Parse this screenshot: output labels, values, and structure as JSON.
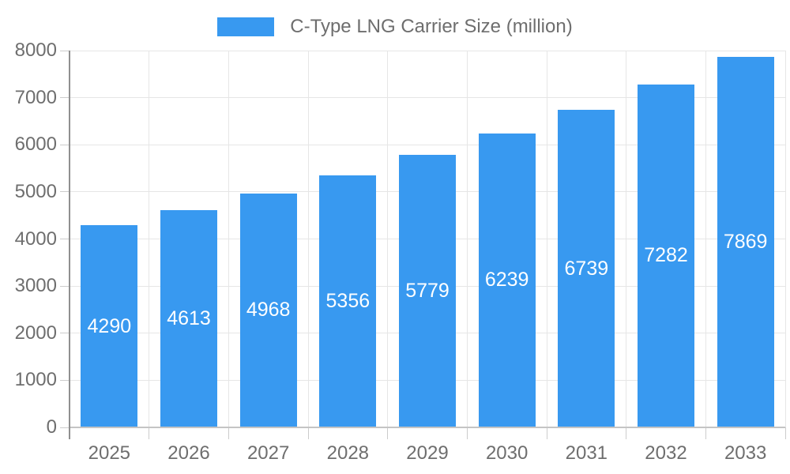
{
  "chart_data": {
    "type": "bar",
    "title": "C-Type LNG Carrier Size (million)",
    "legend_position": "top",
    "categories": [
      "2025",
      "2026",
      "2027",
      "2028",
      "2029",
      "2030",
      "2031",
      "2032",
      "2033"
    ],
    "series": [
      {
        "name": "C-Type LNG Carrier Size (million)",
        "values": [
          4290,
          4613,
          4968,
          5356,
          5779,
          6239,
          6739,
          7282,
          7869
        ]
      }
    ],
    "data_labels_visible": true,
    "xlabel": "",
    "ylabel": "",
    "ylim": [
      0,
      8000
    ],
    "y_ticks": [
      0,
      1000,
      2000,
      3000,
      4000,
      5000,
      6000,
      7000,
      8000
    ],
    "grid": true,
    "colors": {
      "bar": "#3899F0",
      "bar_label_text": "#FFFFFF",
      "axis_text": "#6E6E6E",
      "gridline": "#E6E6E6",
      "x_axis_line": "#C4C4C4",
      "y_axis_line": "#909090",
      "tick": "#CCCCCC",
      "background": "#FFFFFF"
    }
  }
}
